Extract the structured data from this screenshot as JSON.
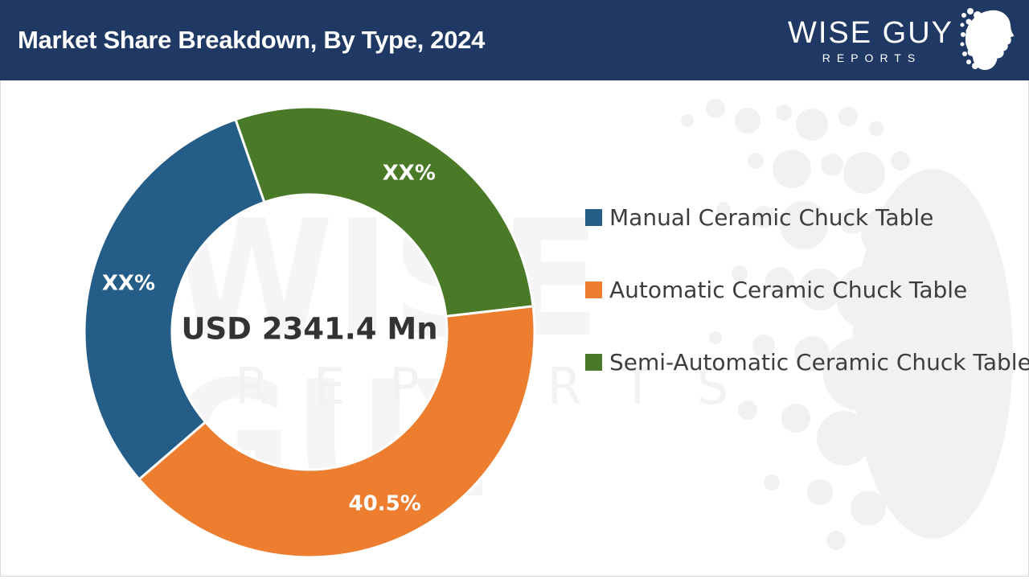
{
  "header": {
    "title": "Market Share Breakdown, By Type, 2024",
    "logo": {
      "line1": "WISE GUY",
      "line2": "REPORTS"
    },
    "bg_color": "#1f3864"
  },
  "watermark": {
    "line1": "WISE GUY",
    "line2": "REPORTS"
  },
  "chart_data": {
    "type": "pie",
    "subtype": "donut",
    "title": "Market Share Breakdown, By Type, 2024",
    "center_label": "USD 2341.4 Mn",
    "legend_position": "right",
    "start_angle_deg": -19.2,
    "draw_order": [
      2,
      1,
      0
    ],
    "segments": [
      {
        "label": "Manual Ceramic Chuck Table",
        "value": 31.0,
        "display": "XX%",
        "color": "#235d88"
      },
      {
        "label": "Automatic Ceramic Chuck Table",
        "value": 40.5,
        "display": "40.5%",
        "color": "#ed7d2f"
      },
      {
        "label": "Semi-Automatic Ceramic Chuck Table",
        "value": 28.5,
        "display": "XX%",
        "color": "#4a7a28"
      }
    ]
  }
}
